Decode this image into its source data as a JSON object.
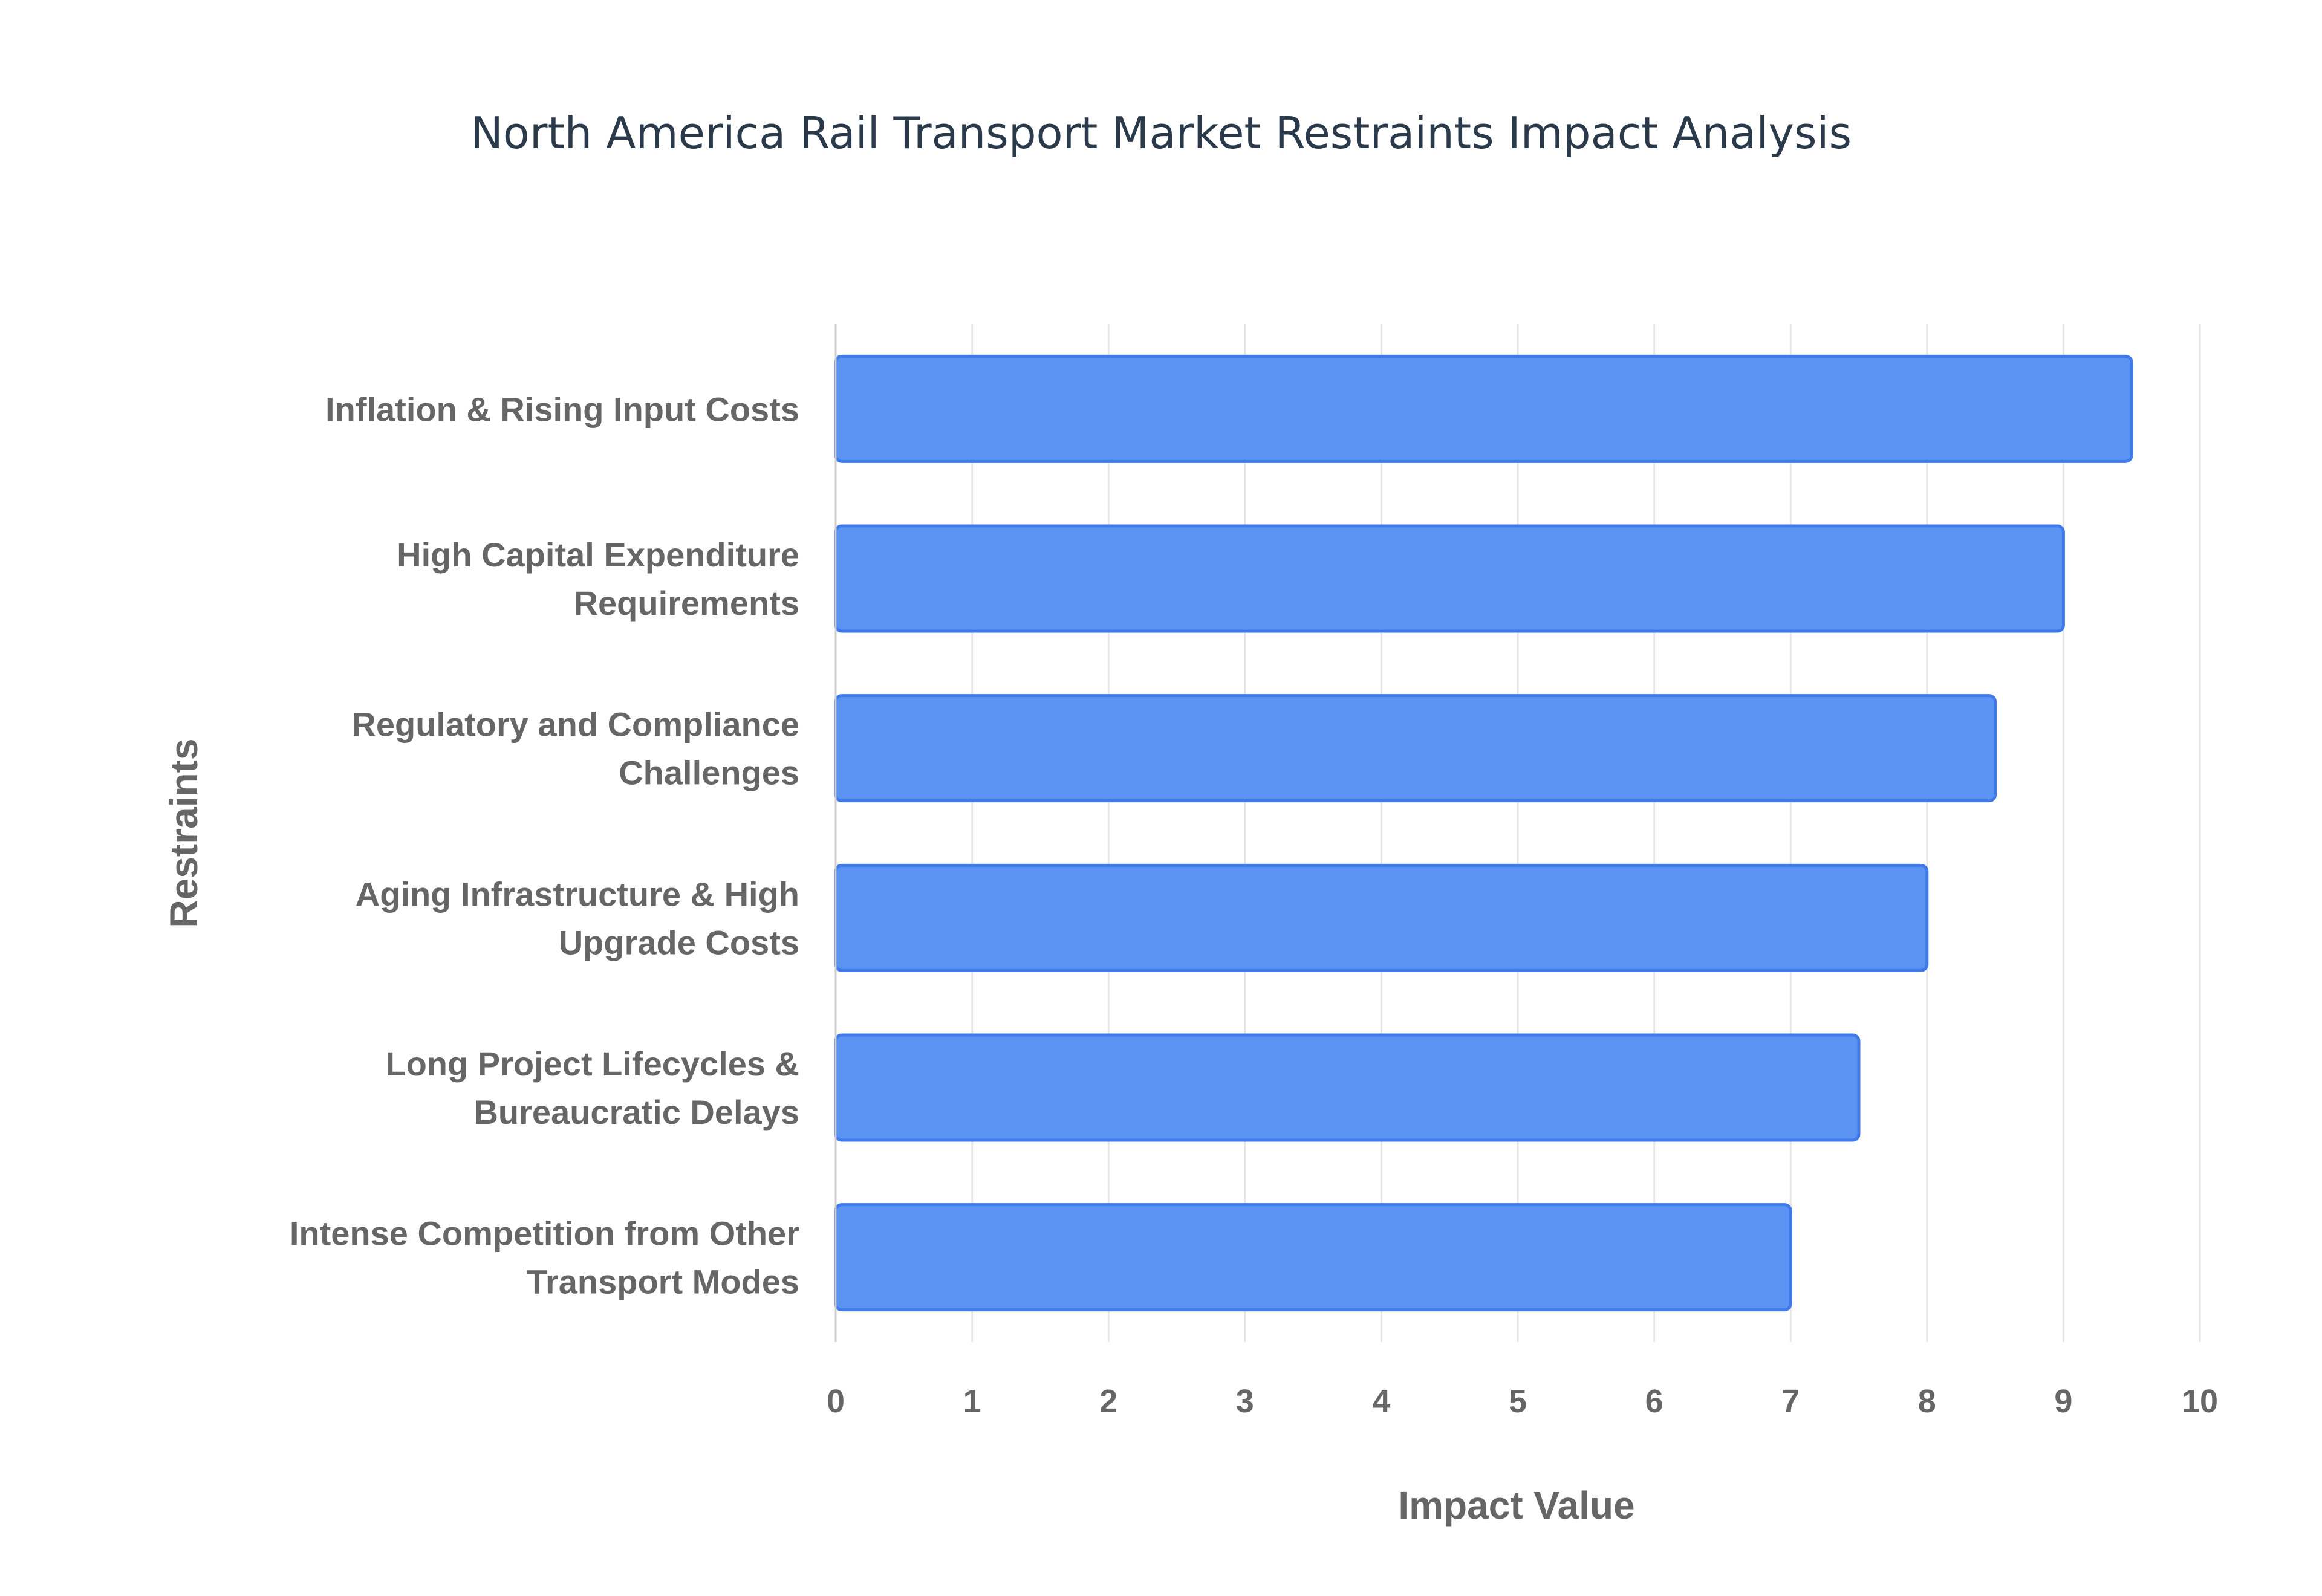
{
  "chart_data": {
    "type": "bar",
    "orientation": "horizontal",
    "title": "North America Rail Transport Market Restraints Impact Analysis",
    "xlabel": "Impact Value",
    "ylabel": "Restraints",
    "xlim": [
      0,
      10
    ],
    "xticks": [
      "0",
      "1",
      "2",
      "3",
      "4",
      "5",
      "6",
      "7",
      "8",
      "9",
      "10"
    ],
    "grid": true,
    "bar_color": "#5b93f3",
    "bar_edge_color": "#3f7ae8",
    "categories": [
      [
        "Inflation & Rising Input Costs"
      ],
      [
        "High Capital Expenditure",
        "Requirements"
      ],
      [
        "Regulatory and Compliance",
        "Challenges"
      ],
      [
        "Aging Infrastructure & High",
        "Upgrade Costs"
      ],
      [
        "Long Project Lifecycles &",
        "Bureaucratic Delays"
      ],
      [
        "Intense Competition from Other",
        "Transport Modes"
      ]
    ],
    "values": [
      9.5,
      9,
      8.5,
      8,
      7.5,
      7
    ]
  }
}
